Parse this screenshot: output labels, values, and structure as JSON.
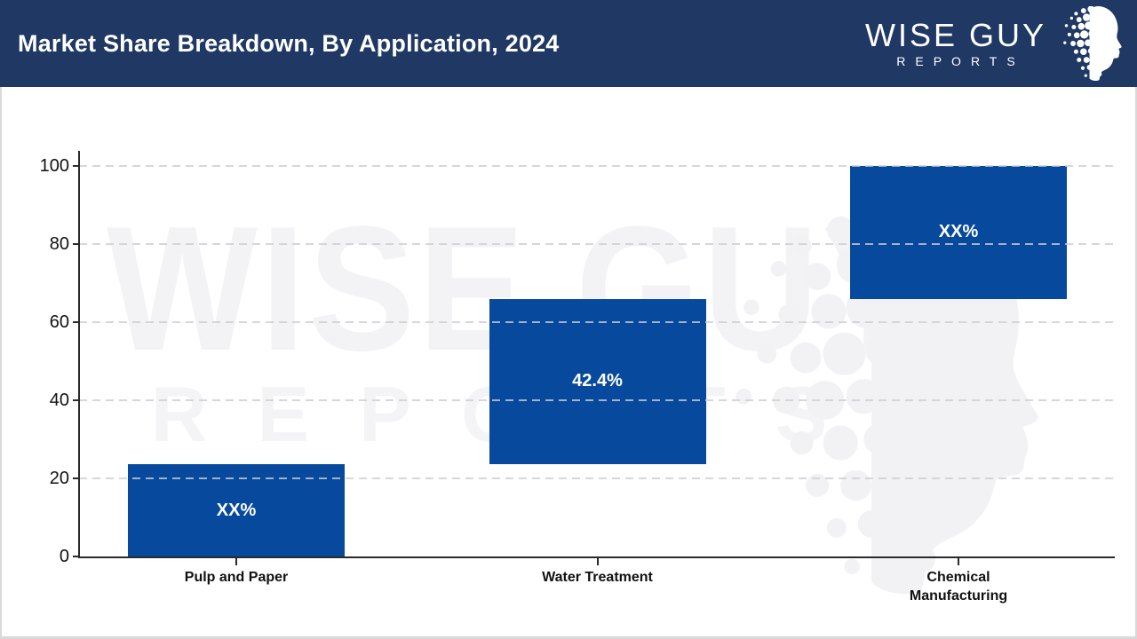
{
  "header": {
    "title": "Market Share Breakdown, By Application, 2024",
    "bg_color": "#1f3864",
    "logo_line1": "WISE GUY",
    "logo_line2": "REPORTS"
  },
  "watermark": {
    "line1": "WISE GUY",
    "line2": "REPORTS"
  },
  "chart_data": {
    "type": "bar",
    "variant": "floating-segment waterfall breakdown",
    "title": "Market Share Breakdown, By Application, 2024",
    "categories": [
      "Pulp and Paper",
      "Water Treatment",
      "Chemical Manufacturing"
    ],
    "segments": [
      {
        "category": "Pulp and Paper",
        "start": 0,
        "end": 23.6,
        "label": "XX%"
      },
      {
        "category": "Water Treatment",
        "start": 23.6,
        "end": 66,
        "label": "42.4%"
      },
      {
        "category": "Chemical Manufacturing",
        "start": 66,
        "end": 100,
        "label": "XX%"
      }
    ],
    "bar_color": "#07499c",
    "value_label_color": "#ffffff",
    "xlabel": "",
    "ylabel": "",
    "yticks": [
      0,
      20,
      40,
      60,
      80,
      100
    ],
    "ylim": [
      0,
      100
    ],
    "grid": "horizontal dashed",
    "legend": "none"
  }
}
